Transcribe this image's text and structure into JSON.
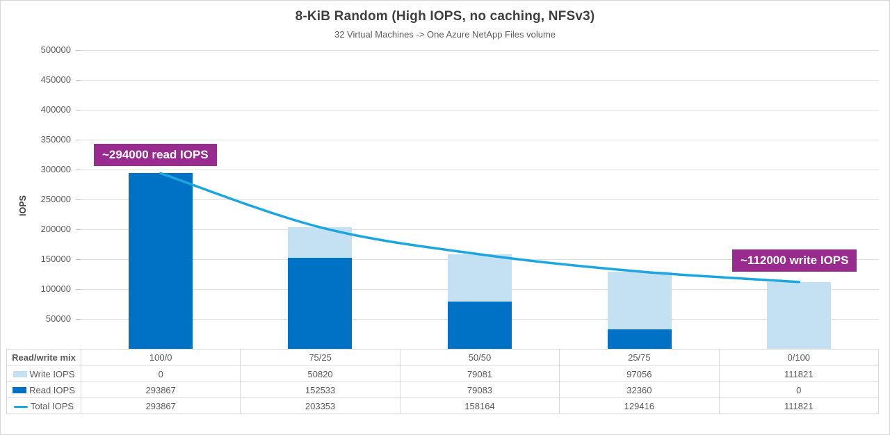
{
  "chart_data": {
    "type": "combo-stacked-bar-line",
    "title": "8-KiB Random (High IOPS, no caching, NFSv3)",
    "subtitle": "32 Virtual Machines -> One Azure NetApp Files volume",
    "ylabel": "IOPS",
    "ylim": [
      0,
      500000
    ],
    "yticks": [
      50000,
      100000,
      150000,
      200000,
      250000,
      300000,
      350000,
      400000,
      450000,
      500000
    ],
    "grid": true,
    "legend_position": "data-table-left",
    "category_axis_label": "Read/write mix",
    "categories": [
      "100/0",
      "75/25",
      "50/50",
      "25/75",
      "0/100"
    ],
    "series": [
      {
        "name": "Write IOPS",
        "type": "bar",
        "stacked": true,
        "color": "#c4e1f4",
        "values": [
          0,
          50820,
          79081,
          97056,
          111821
        ]
      },
      {
        "name": "Read IOPS",
        "type": "bar",
        "stacked": true,
        "color": "#0072c6",
        "values": [
          293867,
          152533,
          79083,
          32360,
          0
        ]
      },
      {
        "name": "Total IOPS",
        "type": "line",
        "color": "#1ba6e0",
        "values": [
          293867,
          203353,
          158164,
          129416,
          111821
        ]
      }
    ],
    "annotations": [
      {
        "text": "~294000 read IOPS",
        "color": "#992b90"
      },
      {
        "text": "~112000 write IOPS",
        "color": "#992b90"
      }
    ]
  }
}
